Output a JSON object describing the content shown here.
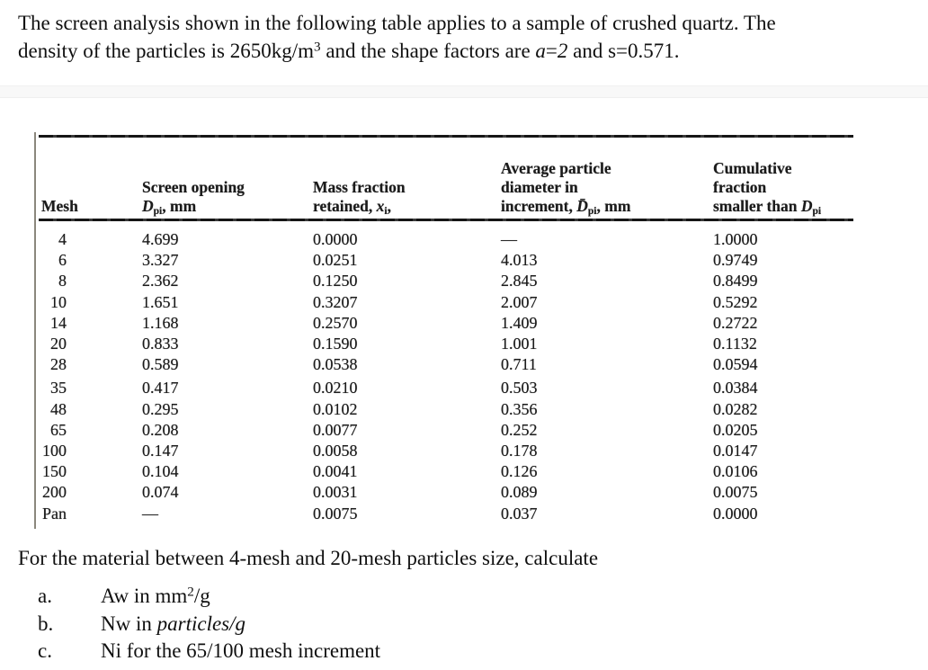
{
  "intro": {
    "text": "The screen analysis shown in the following table applies to a sample of crushed quartz. The\ndensity of the particles is 2650kg/m^{3} and the shape factors are //a//=//2// and s=0.571."
  },
  "table": {
    "columns": [
      {
        "label": "Mesh"
      },
      {
        "label": "Screen opening\n//D//_{pi}, mm"
      },
      {
        "label": "Mass fraction\nretained, //x//_{i},"
      },
      {
        "label": "Average particle\ndiameter in\nincrement, //D̄//_{pi}, mm"
      },
      {
        "label": "Cumulative\nfraction\nsmaller than //D//_{pi}"
      }
    ],
    "rows": [
      {
        "mesh": "4",
        "opening": "4.699",
        "mass_fraction": "0.0000",
        "avg_diameter": "—",
        "cum_fraction": "1.0000"
      },
      {
        "mesh": "6",
        "opening": "3.327",
        "mass_fraction": "0.0251",
        "avg_diameter": "4.013",
        "cum_fraction": "0.9749"
      },
      {
        "mesh": "8",
        "opening": "2.362",
        "mass_fraction": "0.1250",
        "avg_diameter": "2.845",
        "cum_fraction": "0.8499"
      },
      {
        "mesh": "10",
        "opening": "1.651",
        "mass_fraction": "0.3207",
        "avg_diameter": "2.007",
        "cum_fraction": "0.5292"
      },
      {
        "mesh": "14",
        "opening": "1.168",
        "mass_fraction": "0.2570",
        "avg_diameter": "1.409",
        "cum_fraction": "0.2722"
      },
      {
        "mesh": "20",
        "opening": "0.833",
        "mass_fraction": "0.1590",
        "avg_diameter": "1.001",
        "cum_fraction": "0.1132"
      },
      {
        "mesh": "28",
        "opening": "0.589",
        "mass_fraction": "0.0538",
        "avg_diameter": "0.711",
        "cum_fraction": "0.0594"
      },
      {
        "mesh": "35",
        "opening": "0.417",
        "mass_fraction": "0.0210",
        "avg_diameter": "0.503",
        "cum_fraction": "0.0384"
      },
      {
        "mesh": "48",
        "opening": "0.295",
        "mass_fraction": "0.0102",
        "avg_diameter": "0.356",
        "cum_fraction": "0.0282"
      },
      {
        "mesh": "65",
        "opening": "0.208",
        "mass_fraction": "0.0077",
        "avg_diameter": "0.252",
        "cum_fraction": "0.0205"
      },
      {
        "mesh": "100",
        "opening": "0.147",
        "mass_fraction": "0.0058",
        "avg_diameter": "0.178",
        "cum_fraction": "0.0147"
      },
      {
        "mesh": "150",
        "opening": "0.104",
        "mass_fraction": "0.0041",
        "avg_diameter": "0.126",
        "cum_fraction": "0.0106"
      },
      {
        "mesh": "200",
        "opening": "0.074",
        "mass_fraction": "0.0031",
        "avg_diameter": "0.089",
        "cum_fraction": "0.0075"
      },
      {
        "mesh": "Pan",
        "opening": "—",
        "mass_fraction": "0.0075",
        "avg_diameter": "0.037",
        "cum_fraction": "0.0000"
      }
    ]
  },
  "question": {
    "prompt": "For the material between 4-mesh and 20-mesh particles size, calculate",
    "items": [
      {
        "label": "a.",
        "text": "Aw in mm^{2}/g"
      },
      {
        "label": "b.",
        "text": "Nw in //particles/g//"
      },
      {
        "label": "c.",
        "text": "Ni for the 65/100 mesh increment"
      }
    ]
  },
  "colors": {
    "background": "#ffffff",
    "text": "#101010",
    "scan_text": "#1b1b1b",
    "divider_band": "#f8f8f8",
    "table_rule": "#161616",
    "table_left_border": "#8b877d"
  }
}
